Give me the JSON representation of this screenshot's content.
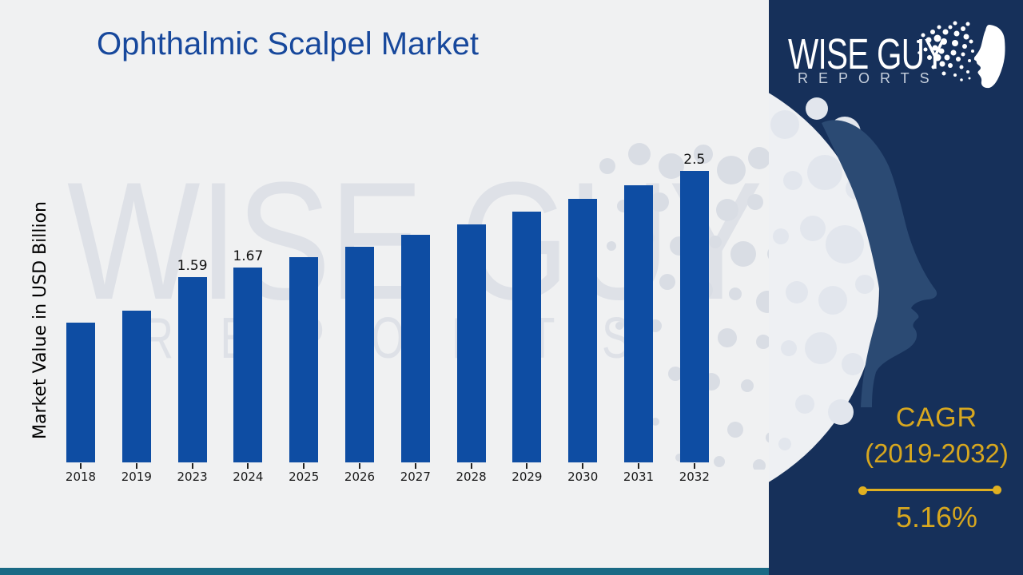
{
  "title": "Ophthalmic Scalpel Market",
  "watermark": {
    "line1": "WISE GUY",
    "line2": "REPORTS"
  },
  "chart_data": {
    "type": "bar",
    "categories": [
      "2018",
      "2019",
      "2023",
      "2024",
      "2025",
      "2026",
      "2027",
      "2028",
      "2029",
      "2030",
      "2031",
      "2032"
    ],
    "values": [
      1.2,
      1.3,
      1.59,
      1.67,
      1.76,
      1.85,
      1.95,
      2.04,
      2.15,
      2.26,
      2.38,
      2.5
    ],
    "point_labels": [
      "",
      "",
      "1.59",
      "1.67",
      "",
      "",
      "",
      "",
      "",
      "",
      "",
      "2.5"
    ],
    "title": "Ophthalmic Scalpel Market",
    "xlabel": "",
    "ylabel": "Market Value in USD Billion",
    "ylim": [
      0,
      2.6
    ],
    "grid": false,
    "legend": "none",
    "bar_color": "#0e4da3"
  },
  "side_panel": {
    "logo": {
      "line1": "WISE GUY",
      "line2": "REPORTS"
    },
    "cagr_label": "CAGR",
    "cagr_period": "(2019-2032)",
    "cagr_value": "5.16%"
  },
  "colors": {
    "background": "#f0f1f2",
    "bar": "#0e4da3",
    "title_text": "#17489c",
    "panel_navy": "#16305a",
    "face_silhouette": "#2b4a73",
    "circle": "#eef0f3",
    "gold_accent": "#d7a71f",
    "teal_strip": "#1a6a85",
    "watermark_gray": "#dee1e7"
  }
}
